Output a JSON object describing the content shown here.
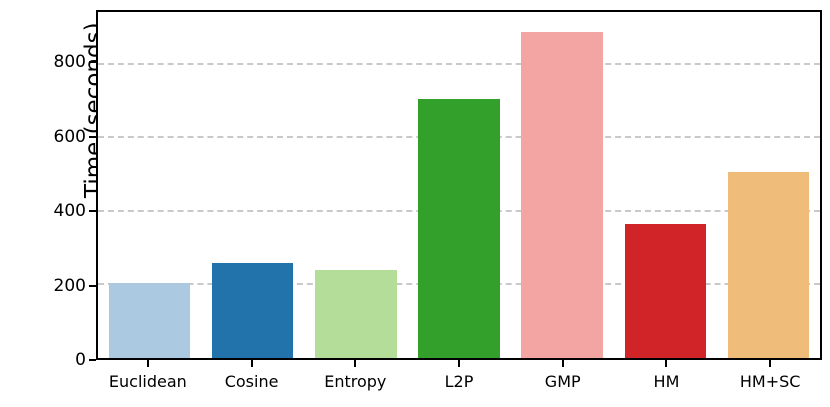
{
  "chart_data": {
    "type": "bar",
    "title": "",
    "xlabel": "",
    "ylabel": "Time (seconds)",
    "categories": [
      "Euclidean",
      "Cosine",
      "Entropy",
      "L2P",
      "GMP",
      "HM",
      "HM+SC"
    ],
    "values": [
      205,
      257,
      240,
      705,
      885,
      365,
      505
    ],
    "colors": [
      "#abc9e0",
      "#2272ab",
      "#b4dd9a",
      "#33a02c",
      "#f3a5a4",
      "#d02428",
      "#efbd79"
    ],
    "ylim": [
      0,
      940
    ],
    "yticks": [
      0,
      200,
      400,
      600,
      800
    ],
    "grid": "horizontal dashed gridlines at y ticks",
    "legend": "none",
    "background": "#ffffff"
  }
}
